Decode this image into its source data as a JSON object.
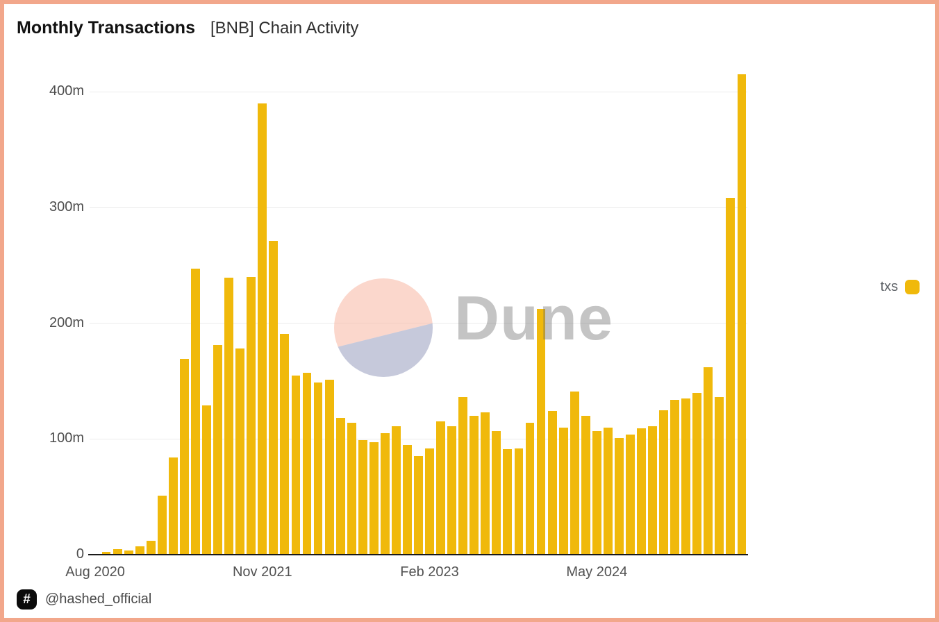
{
  "header": {
    "title": "Monthly Transactions",
    "subtitle": "[BNB] Chain Activity"
  },
  "legend": {
    "label": "txs",
    "color": "#F0B90B"
  },
  "watermark": {
    "text": "Dune"
  },
  "attribution": {
    "icon_glyph": "#",
    "handle": "@hashed_official"
  },
  "colors": {
    "bar": "#F0B90B",
    "frame_border": "#F2A78B",
    "gridline": "#ebebeb",
    "axis": "#1a1a1a",
    "watermark_pink": "rgba(248,183,162,0.55)",
    "watermark_lavender": "rgba(151,156,189,0.55)"
  },
  "chart_data": {
    "type": "bar",
    "title": "Monthly Transactions [BNB] Chain Activity",
    "series_name": "txs",
    "unit": "millions of transactions",
    "x": [
      "Aug 2020",
      "Sep 2020",
      "Oct 2020",
      "Nov 2020",
      "Dec 2020",
      "Jan 2021",
      "Feb 2021",
      "Mar 2021",
      "Apr 2021",
      "May 2021",
      "Jun 2021",
      "Jul 2021",
      "Aug 2021",
      "Sep 2021",
      "Oct 2021",
      "Nov 2021",
      "Dec 2021",
      "Jan 2022",
      "Feb 2022",
      "Mar 2022",
      "Apr 2022",
      "May 2022",
      "Jun 2022",
      "Jul 2022",
      "Aug 2022",
      "Sep 2022",
      "Oct 2022",
      "Nov 2022",
      "Dec 2022",
      "Jan 2023",
      "Feb 2023",
      "Mar 2023",
      "Apr 2023",
      "May 2023",
      "Jun 2023",
      "Jul 2023",
      "Aug 2023",
      "Sep 2023",
      "Oct 2023",
      "Nov 2023",
      "Dec 2023",
      "Jan 2024",
      "Feb 2024",
      "Mar 2024",
      "Apr 2024",
      "May 2024",
      "Jun 2024",
      "Jul 2024",
      "Aug 2024",
      "Sep 2024",
      "Oct 2024",
      "Nov 2024",
      "Dec 2024",
      "Jan 2025",
      "Feb 2025",
      "Mar 2025",
      "Apr 2025",
      "May 2025",
      "Jun 2025"
    ],
    "values": [
      0.5,
      2.5,
      4.5,
      3.5,
      7,
      12,
      51,
      84,
      169,
      247,
      129,
      181,
      239,
      178,
      240,
      390,
      271,
      191,
      155,
      157,
      149,
      151,
      118,
      114,
      99,
      97,
      105,
      111,
      95,
      85,
      92,
      115,
      111,
      136,
      120,
      123,
      107,
      91,
      92,
      114,
      212,
      124,
      110,
      141,
      120,
      107,
      110,
      101,
      104,
      109,
      111,
      125,
      134,
      135,
      140,
      162,
      136,
      308,
      415
    ],
    "xlabel": "",
    "ylabel": "",
    "ylim": [
      0,
      418
    ],
    "y_ticks": [
      0,
      100,
      200,
      300,
      400
    ],
    "y_tick_labels": [
      "0",
      "100m",
      "200m",
      "300m",
      "400m"
    ],
    "x_tick_indices": [
      0,
      15,
      30,
      45
    ],
    "x_tick_labels": [
      "Aug 2020",
      "Nov 2021",
      "Feb 2023",
      "May 2024"
    ],
    "grid": "horizontal",
    "legend_position": "right",
    "bar_color": "#F0B90B"
  }
}
